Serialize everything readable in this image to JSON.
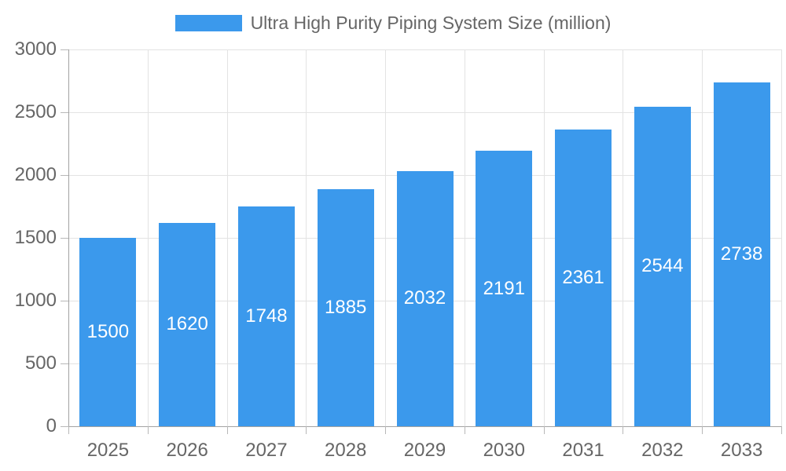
{
  "legend": {
    "label": "Ultra High Purity Piping System Size (million)"
  },
  "colors": {
    "bar": "#3B99EC",
    "bar_label_text": "#FFFFFF",
    "axis_text": "#666666",
    "grid_line": "#E3E3E3",
    "axis_line": "#A3A3A3",
    "background": "#FFFFFF"
  },
  "chart_data": {
    "type": "bar",
    "title": "Ultra High Purity Piping System Size (million)",
    "categories": [
      "2025",
      "2026",
      "2027",
      "2028",
      "2029",
      "2030",
      "2031",
      "2032",
      "2033"
    ],
    "values": [
      1500,
      1620,
      1748,
      1885,
      2032,
      2191,
      2361,
      2544,
      2738
    ],
    "xlabel": "",
    "ylabel": "",
    "ylim": [
      0,
      3000
    ],
    "yticks": [
      0,
      500,
      1000,
      1500,
      2000,
      2500,
      3000
    ],
    "grid": true,
    "legend_position": "top",
    "value_labels": "inside-center"
  }
}
